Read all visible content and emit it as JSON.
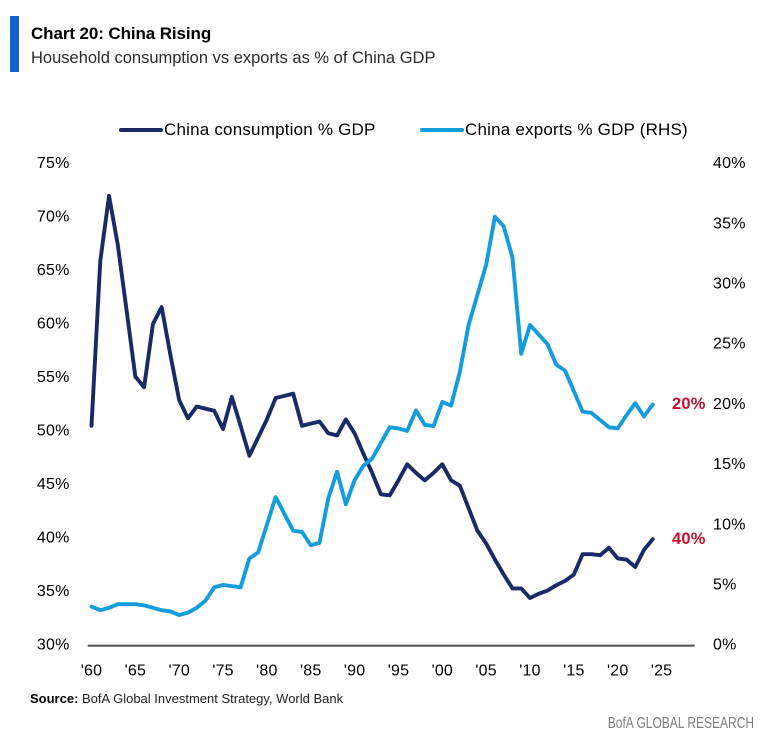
{
  "header": {
    "title": "Chart 20: China Rising",
    "subtitle": "Household consumption vs exports as % of China GDP",
    "accent_bar_color": "#1661CC"
  },
  "legend": {
    "items": [
      {
        "label": "China consumption % GDP",
        "color": "#1A2A66"
      },
      {
        "label": "China exports % GDP (RHS)",
        "color": "#149DDD"
      }
    ]
  },
  "chart_data": {
    "type": "line",
    "title": "Chart 20: China Rising",
    "subtitle": "Household consumption vs exports as % of China GDP",
    "grid": false,
    "legend_position": "top",
    "x": [
      1960,
      1961,
      1962,
      1963,
      1964,
      1965,
      1966,
      1967,
      1968,
      1969,
      1970,
      1971,
      1972,
      1973,
      1974,
      1975,
      1976,
      1977,
      1978,
      1979,
      1980,
      1981,
      1982,
      1983,
      1984,
      1985,
      1986,
      1987,
      1988,
      1989,
      1990,
      1991,
      1992,
      1993,
      1994,
      1995,
      1996,
      1997,
      1998,
      1999,
      2000,
      2001,
      2002,
      2003,
      2004,
      2005,
      2006,
      2007,
      2008,
      2009,
      2010,
      2011,
      2012,
      2013,
      2014,
      2015,
      2016,
      2017,
      2018,
      2019,
      2020,
      2021,
      2022,
      2023,
      2024
    ],
    "x_tick_labels": [
      "'60",
      "'65",
      "'70",
      "'75",
      "'80",
      "'85",
      "'90",
      "'95",
      "'00",
      "'05",
      "'10",
      "'15",
      "'20",
      "'25"
    ],
    "x_tick_years": [
      1960,
      1965,
      1970,
      1975,
      1980,
      1985,
      1990,
      1995,
      2000,
      2005,
      2010,
      2015,
      2020,
      2025
    ],
    "left_axis": {
      "min": 30,
      "max": 75,
      "step": 5,
      "tick_labels": [
        "75%",
        "70%",
        "65%",
        "60%",
        "55%",
        "50%",
        "45%",
        "40%",
        "35%",
        "30%"
      ]
    },
    "right_axis": {
      "min": 0,
      "max": 40,
      "step": 5,
      "tick_labels": [
        "40%",
        "35%",
        "30%",
        "25%",
        "20%",
        "15%",
        "10%",
        "5%",
        "0%"
      ]
    },
    "series": [
      {
        "name": "China consumption % GDP",
        "axis": "left",
        "color": "#1A2A66",
        "values": [
          50.5,
          65.9,
          72.0,
          67.4,
          61.3,
          55.1,
          54.1,
          60.0,
          61.6,
          57.1,
          52.9,
          51.2,
          52.3,
          52.1,
          51.9,
          50.2,
          53.2,
          50.5,
          47.7,
          49.4,
          51.1,
          53.1,
          53.3,
          53.5,
          50.5,
          50.7,
          50.9,
          49.8,
          49.6,
          51.1,
          49.8,
          47.9,
          46.1,
          44.1,
          44.0,
          45.4,
          46.9,
          46.1,
          45.4,
          46.1,
          46.9,
          45.4,
          44.9,
          42.8,
          40.7,
          39.5,
          38.0,
          36.6,
          35.3,
          35.3,
          34.4,
          34.8,
          35.1,
          35.6,
          36.0,
          36.6,
          38.5,
          38.5,
          38.4,
          39.1,
          38.1,
          38.0,
          37.3,
          38.9,
          39.9
        ]
      },
      {
        "name": "China exports % GDP (RHS)",
        "axis": "right",
        "color": "#149DDD",
        "values": [
          3.2,
          2.9,
          3.1,
          3.4,
          3.4,
          3.4,
          3.3,
          3.1,
          2.9,
          2.8,
          2.5,
          2.7,
          3.1,
          3.7,
          4.8,
          5.0,
          4.9,
          4.8,
          7.2,
          7.7,
          10.0,
          12.3,
          10.9,
          9.5,
          9.4,
          8.3,
          8.5,
          12.2,
          14.4,
          11.7,
          13.7,
          14.9,
          15.5,
          16.8,
          18.1,
          18.0,
          17.8,
          19.5,
          18.3,
          18.2,
          20.2,
          19.9,
          22.7,
          26.6,
          29.1,
          31.6,
          35.6,
          34.8,
          32.2,
          24.2,
          26.6,
          25.8,
          25.0,
          23.3,
          22.8,
          21.1,
          19.4,
          19.3,
          18.7,
          18.1,
          18.0,
          19.1,
          20.1,
          19.0,
          20.0
        ]
      }
    ],
    "end_labels": [
      {
        "text": "40%",
        "series": 0,
        "color": "#C8102E"
      },
      {
        "text": "20%",
        "series": 1,
        "color": "#C8102E"
      }
    ],
    "axis_line_color": "#58585A",
    "tick_label_color": "#000000"
  },
  "footer": {
    "source_label": "Source:",
    "source_text": " BofA Global Investment Strategy, World Bank",
    "brand": "BofA GLOBAL RESEARCH"
  }
}
